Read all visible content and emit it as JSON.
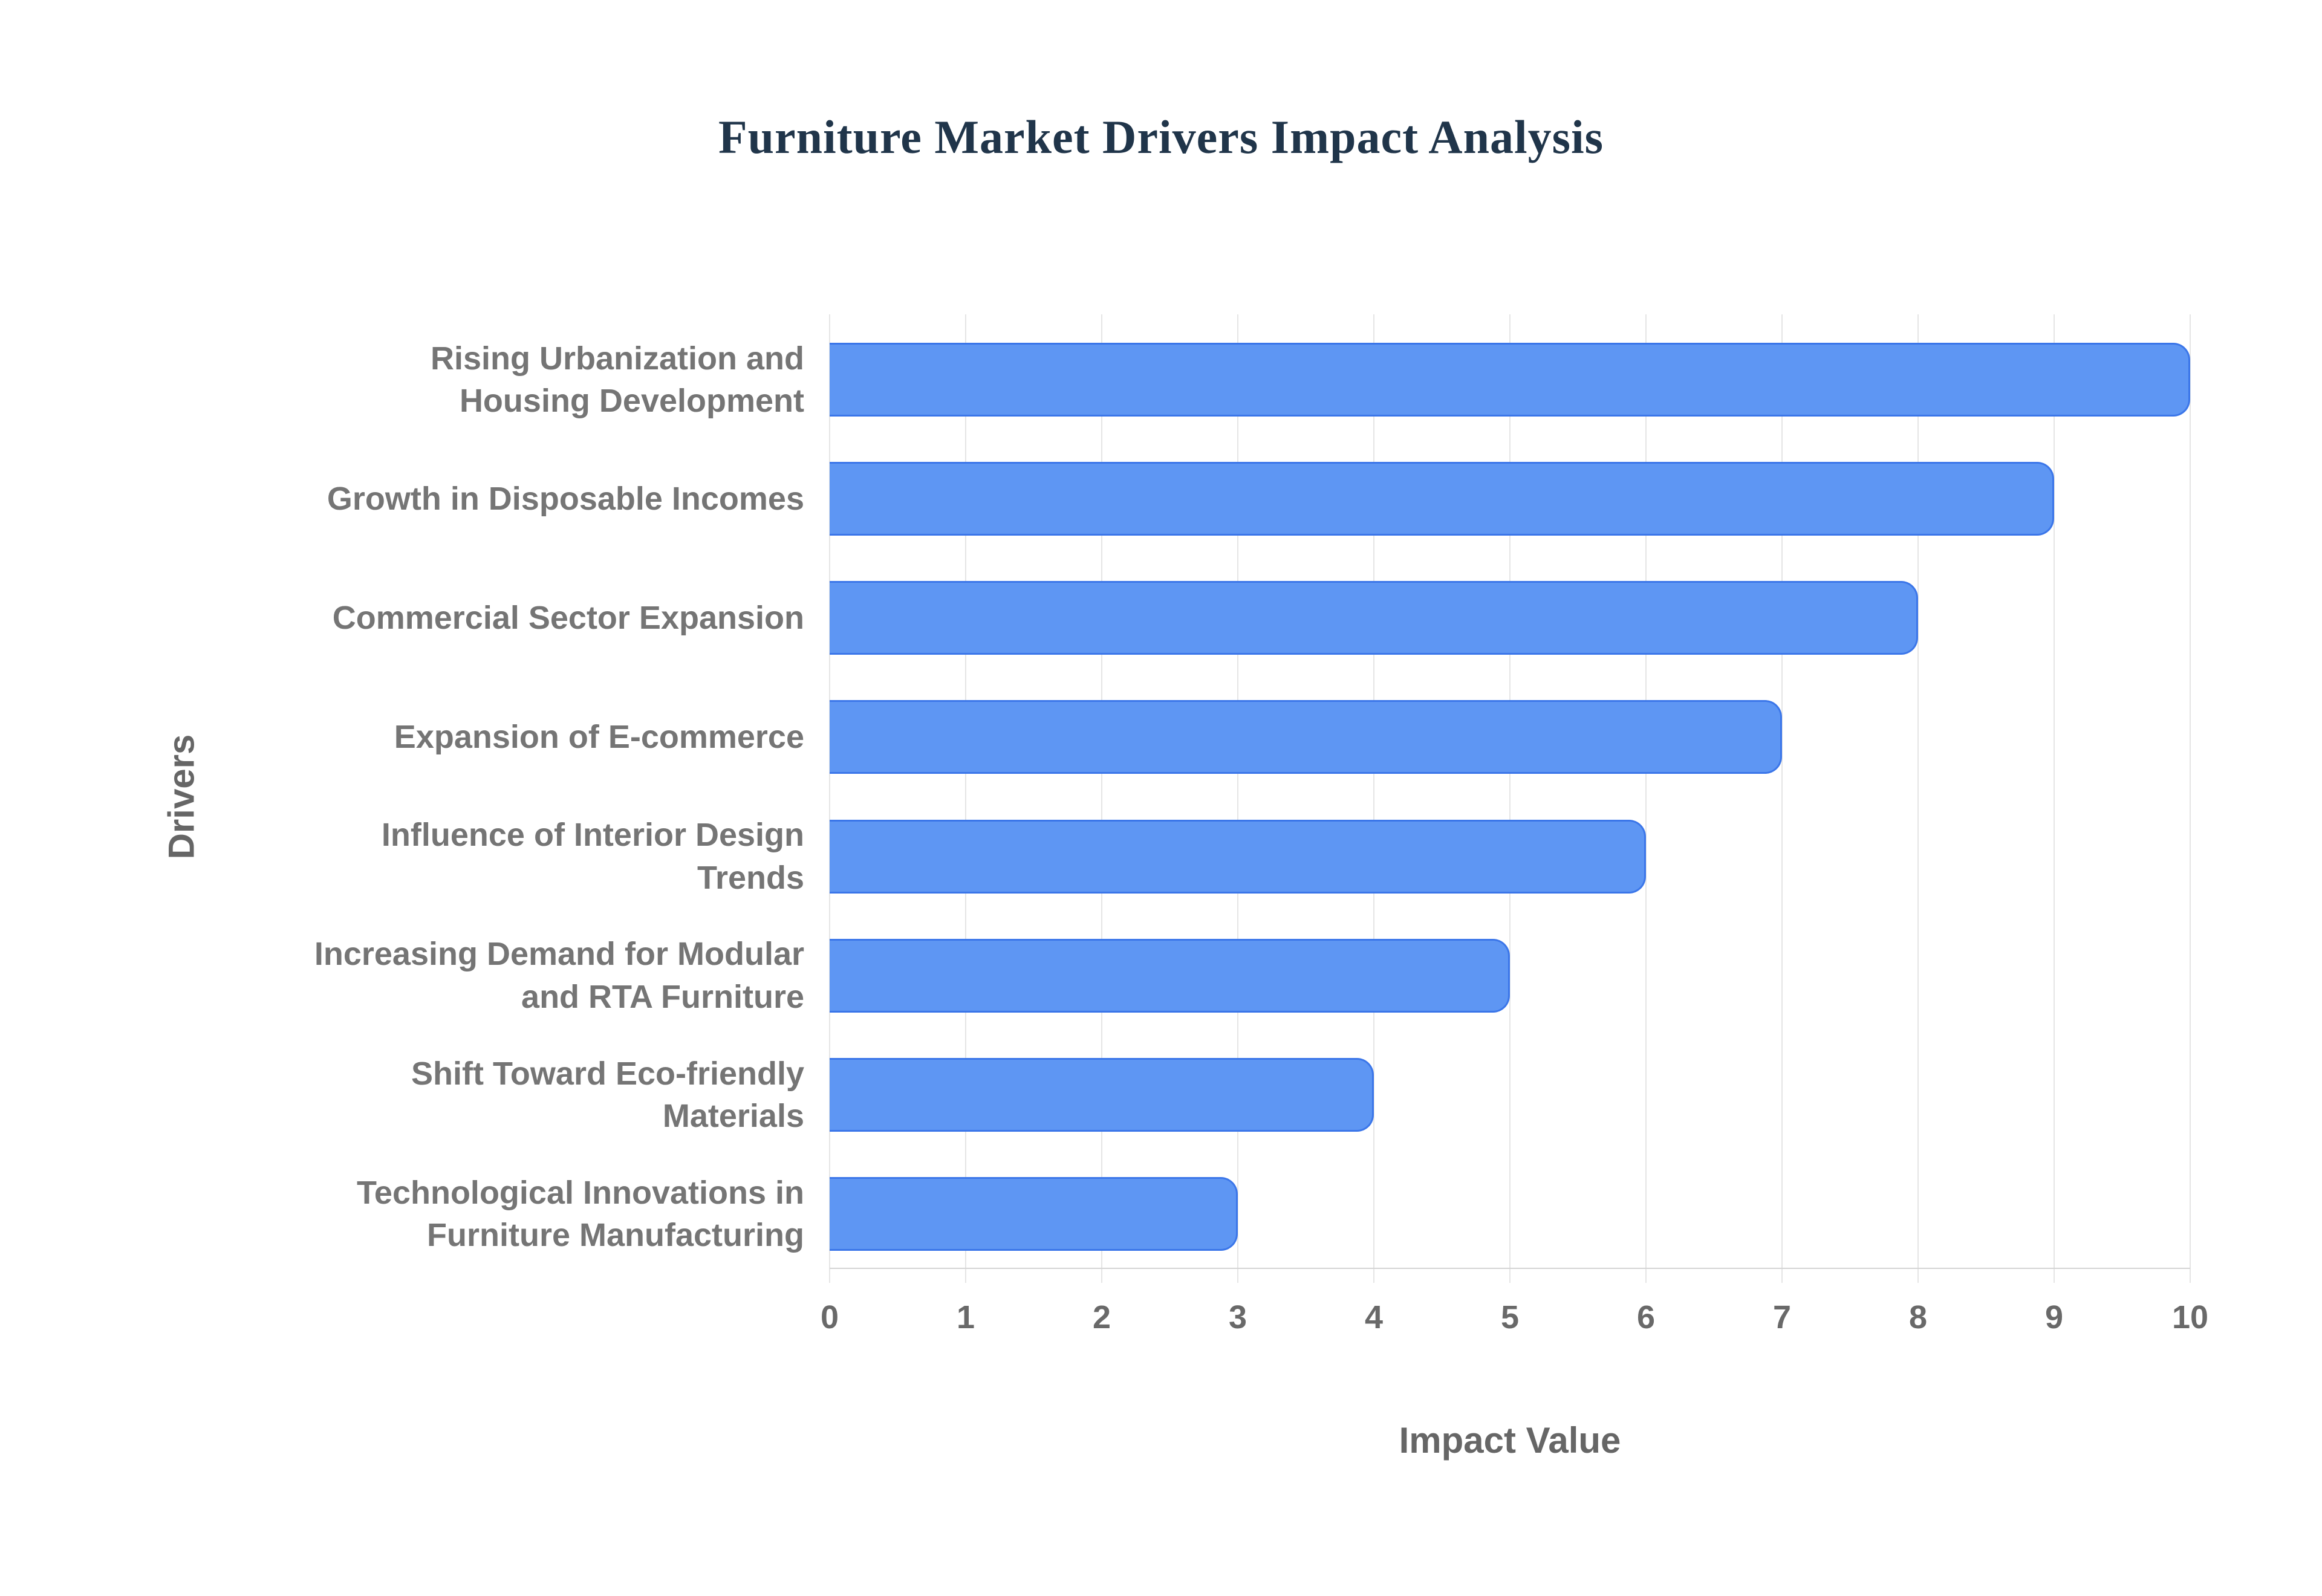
{
  "title": {
    "text": "Furniture Market Drivers Impact Analysis"
  },
  "chart_data": {
    "type": "bar",
    "orientation": "horizontal",
    "title": "Furniture Market Drivers Impact Analysis",
    "categories": [
      "Rising Urbanization and\nHousing Development",
      "Growth in Disposable Incomes",
      "Commercial Sector Expansion",
      "Expansion of E-commerce",
      "Influence of Interior Design\nTrends",
      "Increasing Demand for Modular\nand RTA Furniture",
      "Shift Toward Eco-friendly\nMaterials",
      "Technological Innovations in\nFurniture Manufacturing"
    ],
    "values": [
      10,
      9,
      8,
      7,
      6,
      5,
      4,
      3
    ],
    "xlabel": "Impact Value",
    "ylabel": "Drivers",
    "xlim": [
      0,
      10
    ],
    "xticks": [
      0,
      1,
      2,
      3,
      4,
      5,
      6,
      7,
      8,
      9,
      10
    ],
    "grid": true,
    "legend": "none",
    "colors": {
      "background": "#ffffff",
      "bar_fill": "#5e96f3",
      "bar_stroke": "#3b76e9",
      "gridline": "#e5e5e5",
      "axis_line": "#d4d4d4",
      "tick_text": "#696969",
      "category_text": "#757575",
      "axis_title_text": "#666666",
      "chart_title_text": "#20354a"
    }
  }
}
